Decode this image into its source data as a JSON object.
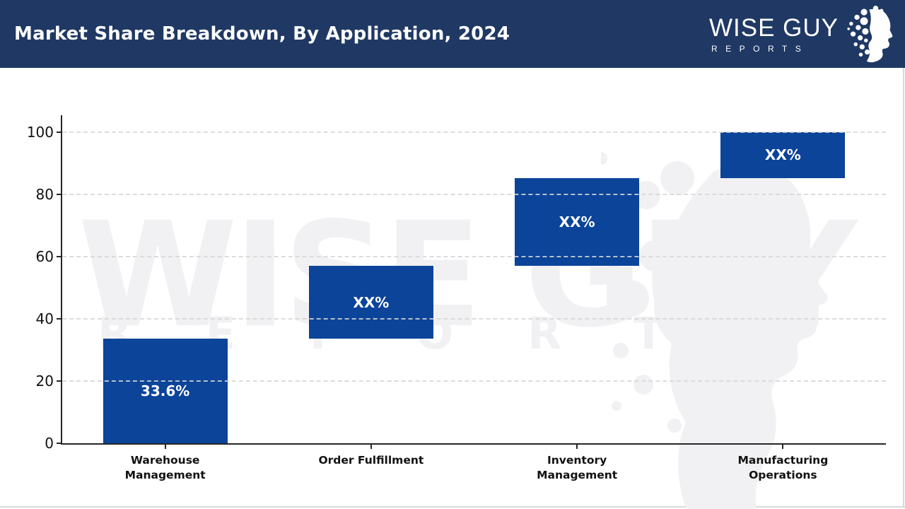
{
  "header": {
    "title": "Market Share Breakdown, By Application, 2024",
    "logo": {
      "name": "WISE GUY",
      "tagline": "REPORTS"
    }
  },
  "watermark": {
    "line1": "WISE GUY",
    "line2": "REPORTS"
  },
  "chart_data": {
    "type": "bar",
    "subtype": "waterfall",
    "title": "Market Share Breakdown, By Application, 2024",
    "categories": [
      "Warehouse Management",
      "Order Fulfillment",
      "Inventory Management",
      "Manufacturing Operations"
    ],
    "segments": [
      {
        "category": "Warehouse Management",
        "start": 0,
        "end": 33.6,
        "label": "33.6%"
      },
      {
        "category": "Order Fulfillment",
        "start": 33.6,
        "end": 57.0,
        "label": "XX%"
      },
      {
        "category": "Inventory Management",
        "start": 57.0,
        "end": 85.3,
        "label": "XX%"
      },
      {
        "category": "Manufacturing Operations",
        "start": 85.3,
        "end": 100,
        "label": "XX%"
      }
    ],
    "ylim": [
      0,
      100
    ],
    "yticks": [
      0,
      20,
      40,
      60,
      80,
      100
    ],
    "xlabel": "",
    "ylabel": "",
    "grid": "horizontal-dashed",
    "legend": null,
    "bar_color": "#0b4499",
    "bar_label_color": "#ffffff"
  },
  "colors": {
    "header_bg": "#1f3864",
    "bar": "#0b4499",
    "axis": "#262626",
    "grid": "#d9d9d9",
    "text": "#111111",
    "watermark": "#f1f1f3",
    "background": "#ffffff"
  }
}
